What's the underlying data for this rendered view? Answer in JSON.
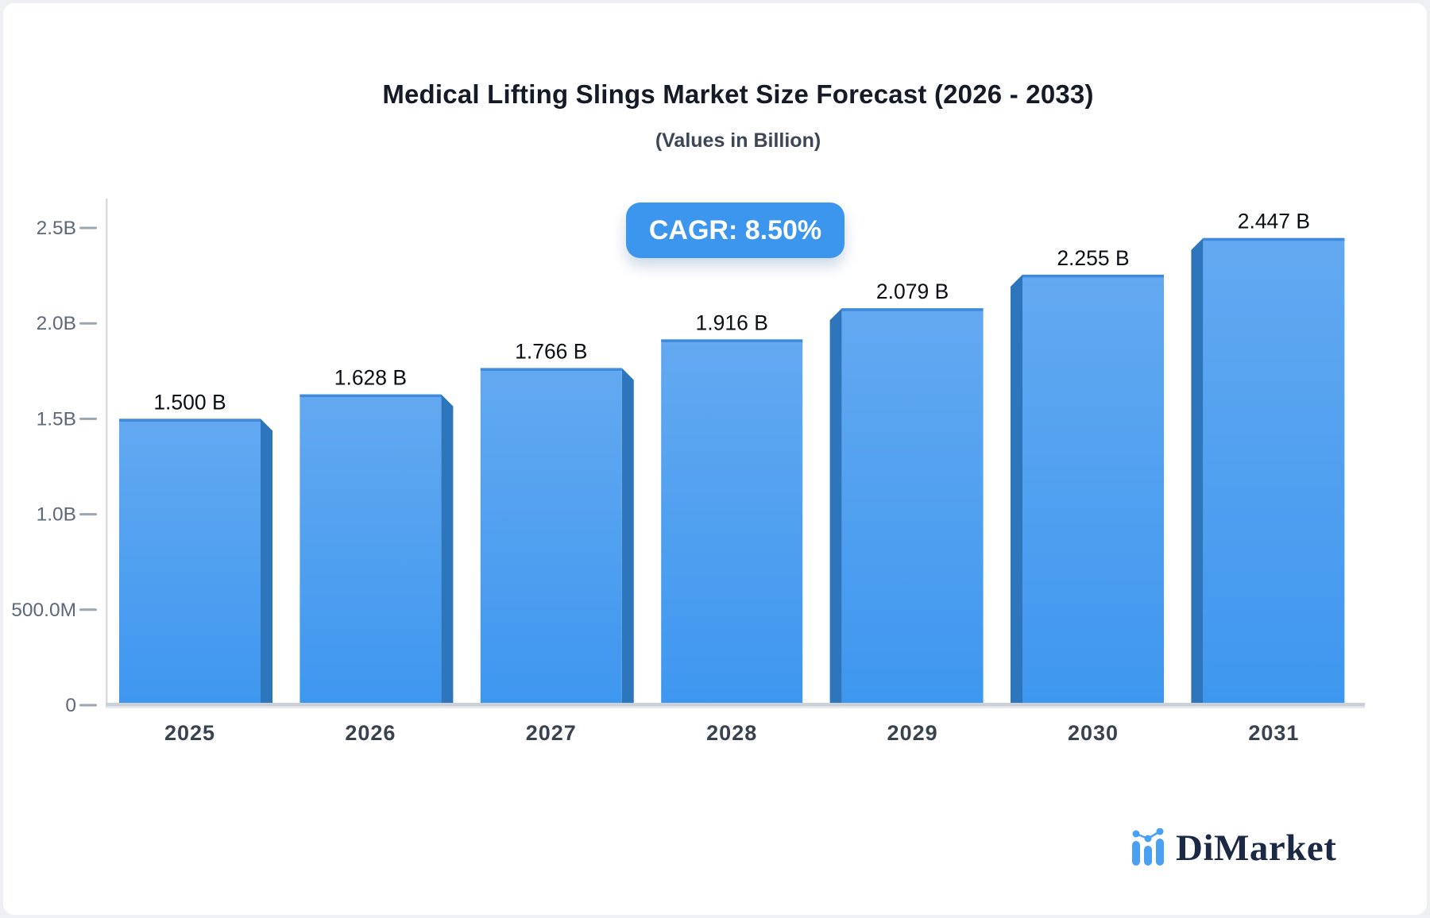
{
  "header": {
    "title": "Medical Lifting Slings Market Size Forecast (2026 - 2033)",
    "subtitle": "(Values in Billion)"
  },
  "badge": {
    "label": "CAGR: 8.50%",
    "background": "#3c96ed",
    "text_color": "#ffffff"
  },
  "chart_data": {
    "type": "bar",
    "title": "Medical Lifting Slings Market Size Forecast (2026 - 2033)",
    "subtitle": "(Values in Billion)",
    "unit": "Billion",
    "cagr": "8.50%",
    "categories": [
      "2025",
      "2026",
      "2027",
      "2028",
      "2029",
      "2030",
      "2031"
    ],
    "values": [
      1.5,
      1.628,
      1.766,
      1.916,
      2.079,
      2.255,
      2.447
    ],
    "value_labels": [
      "1.500 B",
      "1.628 B",
      "1.766 B",
      "1.916 B",
      "2.079 B",
      "2.255 B",
      "2.447 B"
    ],
    "y_ticks": [
      {
        "label": "2.5B",
        "value": 2.5
      },
      {
        "label": "2.0B",
        "value": 2.0
      },
      {
        "label": "1.5B",
        "value": 1.5
      },
      {
        "label": "1.0B",
        "value": 1.0
      },
      {
        "label": "500.0M",
        "value": 0.5
      },
      {
        "label": "0",
        "value": 0
      }
    ],
    "ylim": [
      0,
      2.5
    ],
    "grid": false,
    "legend": "none",
    "colors": {
      "bar_top": "#63a9f1",
      "bar_bottom": "#3e97ef",
      "bar_top_edge": "#3c86d8",
      "bar_side": "#2e76bb",
      "axis_line": "#d8dbe1",
      "baseline": "#ccd1d8",
      "tick_dash": "#9aa6b2",
      "y_tick_text": "#5d6878",
      "x_tick_text": "#39424f",
      "value_text": "#0b0e14"
    }
  },
  "logo": {
    "text": "DiMarket",
    "text_color": "#1b2945",
    "icon": "bar-chart-icon",
    "icon_color": "#4aa0f3"
  }
}
